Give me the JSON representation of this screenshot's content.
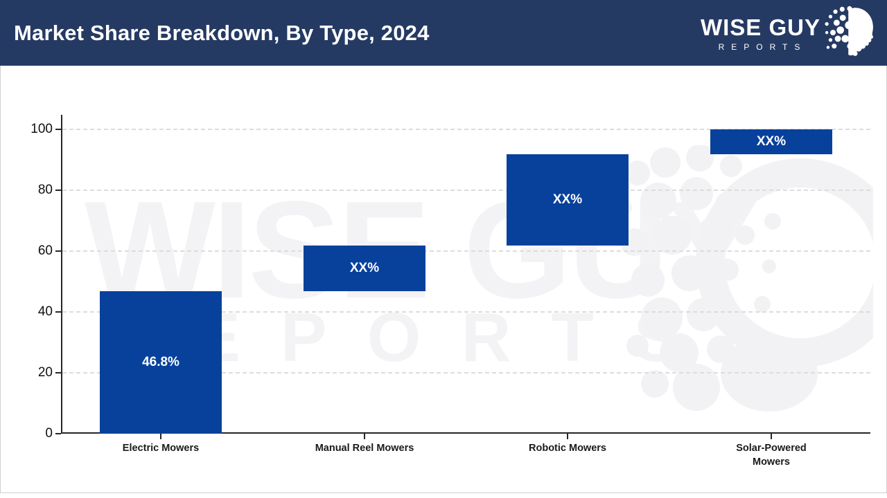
{
  "header": {
    "title": "Market Share Breakdown, By Type, 2024",
    "logo": {
      "name": "WISE GUY",
      "tagline": "REPORTS"
    }
  },
  "watermark": {
    "line1": "WISE GUY",
    "line2": "REPORTS"
  },
  "chart_data": {
    "type": "bar",
    "subtype": "waterfall",
    "title": "Market Share Breakdown, By Type, 2024",
    "xlabel": "",
    "ylabel": "",
    "ylim": [
      0,
      104.8
    ],
    "y_ticks": [
      0,
      20,
      40,
      60,
      80,
      100
    ],
    "grid": "horizontal-dashed",
    "legend": "none",
    "bar_color": "#08419c",
    "value_label_color": "#ffffff",
    "categories": [
      "Electric Mowers",
      "Manual Reel Mowers",
      "Robotic Mowers",
      "Solar-Powered Mowers"
    ],
    "bars": [
      {
        "category": "Electric Mowers",
        "tick_label": "Electric Mowers",
        "start": 0,
        "end": 46.8,
        "value_label": "46.8%"
      },
      {
        "category": "Manual Reel Mowers",
        "tick_label": "Manual Reel Mowers",
        "start": 46.8,
        "end": 61.8,
        "value_label": "XX%"
      },
      {
        "category": "Robotic Mowers",
        "tick_label": "Robotic Mowers",
        "start": 61.8,
        "end": 91.8,
        "value_label": "XX%"
      },
      {
        "category": "Solar-Powered Mowers",
        "tick_label": "Solar-Powered\nMowers",
        "start": 91.8,
        "end": 100,
        "value_label": "XX%"
      }
    ]
  },
  "colors": {
    "header_bg": "#253a63",
    "bar_fill": "#08419c",
    "grid_line": "#dcdcdc",
    "axis_line": "#262626",
    "page_bg": "#ffffff",
    "card_border": "#cfcfcf",
    "watermark": "#f3f3f5"
  }
}
